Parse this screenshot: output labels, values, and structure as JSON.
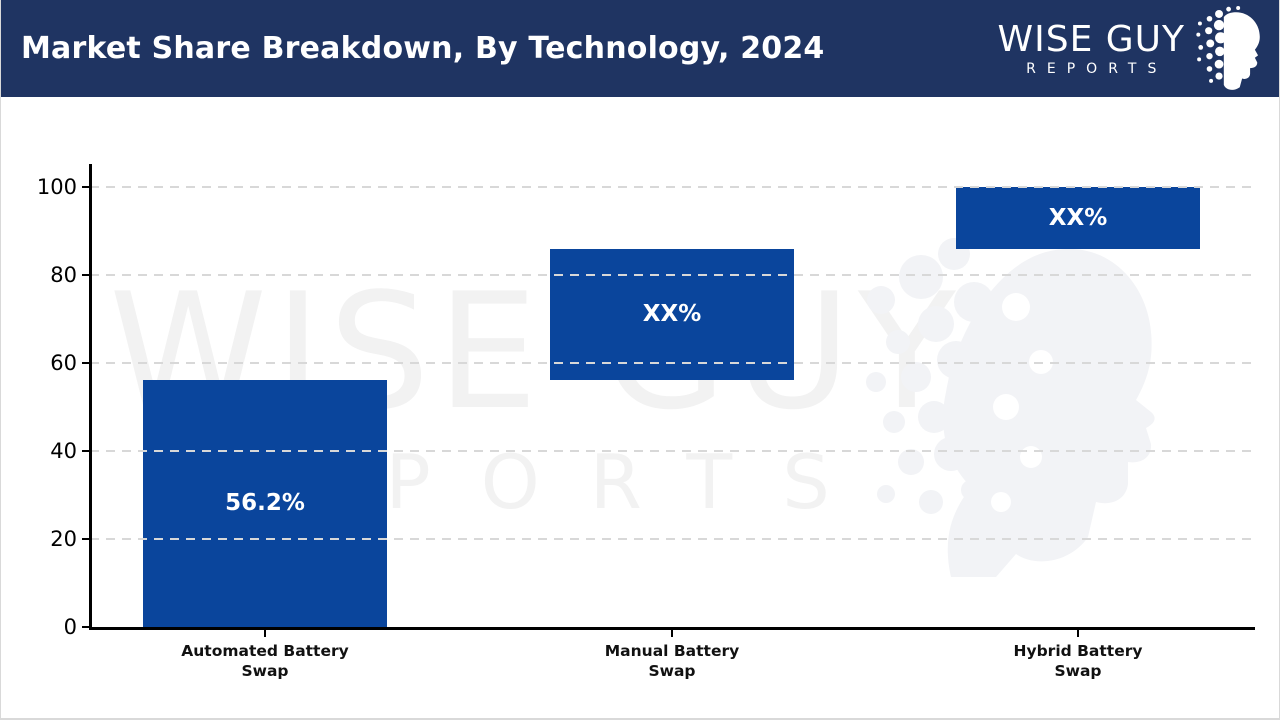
{
  "header": {
    "title": "Market Share Breakdown, By Technology, 2024",
    "logo": {
      "line1": "WISE GUY",
      "line2": "REPORTS"
    }
  },
  "watermark": {
    "line1": "WISE GUY",
    "line2": "REPORTS"
  },
  "chart_data": {
    "type": "bar",
    "variant": "stacked-waterfall",
    "title": "Market Share Breakdown, By Technology, 2024",
    "categories": [
      [
        "Automated Battery",
        "Swap"
      ],
      [
        "Manual Battery",
        "Swap"
      ],
      [
        "Hybrid Battery",
        "Swap"
      ]
    ],
    "bars": [
      {
        "from": 0,
        "to": 56.2,
        "label": "56.2%"
      },
      {
        "from": 56.2,
        "to": 86,
        "label": "XX%"
      },
      {
        "from": 86,
        "to": 100,
        "label": "XX%"
      }
    ],
    "ylim": [
      0,
      100
    ],
    "yticks": [
      0,
      20,
      40,
      60,
      80,
      100
    ],
    "xlabel": "",
    "ylabel": "",
    "grid": {
      "axis": "y",
      "style": "dashed",
      "drawn_over_bars": true
    },
    "legend": "none",
    "colors": {
      "bar": "#0a459c",
      "header_bg": "#1f3462",
      "grid": "#d8d8d8",
      "watermark": "#f2f2f2",
      "axis": "#000000"
    }
  }
}
